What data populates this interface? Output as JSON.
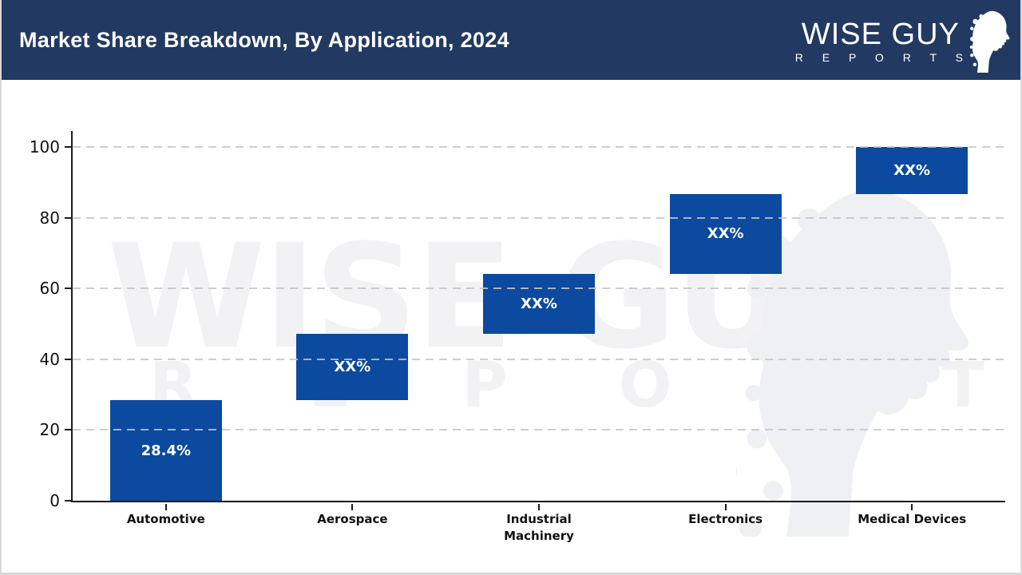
{
  "header": {
    "title": "Market Share Breakdown, By Application, 2024",
    "bg_color": "#223961",
    "logo": {
      "line1": "WISE GUY",
      "line2": "R E P O R T S"
    }
  },
  "icons": {
    "logo_head": "head-profile-with-dots",
    "watermark_head": "head-profile-with-dots"
  },
  "watermark": {
    "line1": "WISE GUY",
    "line2": "R E P O R T S"
  },
  "chart_data": {
    "type": "bar",
    "subtype": "waterfall-floating-bars",
    "title": "Market Share Breakdown, By Application, 2024",
    "categories": [
      "Automotive",
      "Aerospace",
      "Industrial Machinery",
      "Electronics",
      "Medical Devices"
    ],
    "bars": [
      {
        "category": "Automotive",
        "start": 0,
        "end": 28.4,
        "label": "28.4%"
      },
      {
        "category": "Aerospace",
        "start": 28.4,
        "end": 47.2,
        "label": "XX%"
      },
      {
        "category": "Industrial Machinery",
        "start": 47.2,
        "end": 64.2,
        "label": "XX%"
      },
      {
        "category": "Electronics",
        "start": 64.2,
        "end": 86.8,
        "label": "XX%"
      },
      {
        "category": "Medical Devices",
        "start": 86.8,
        "end": 100,
        "label": "XX%"
      }
    ],
    "yticks": [
      0,
      20,
      40,
      60,
      80,
      100
    ],
    "ylim": [
      0,
      104.6
    ],
    "xlabel": "",
    "ylabel": "",
    "grid": "horizontal dashed, drawn over bars",
    "legend": "none",
    "colors": {
      "bar": "#0b4a9e",
      "bar_label": "#ffffff",
      "axis": "#1c1c1c",
      "grid": "#c5c5c5",
      "watermark": "#f2f2f5"
    }
  }
}
